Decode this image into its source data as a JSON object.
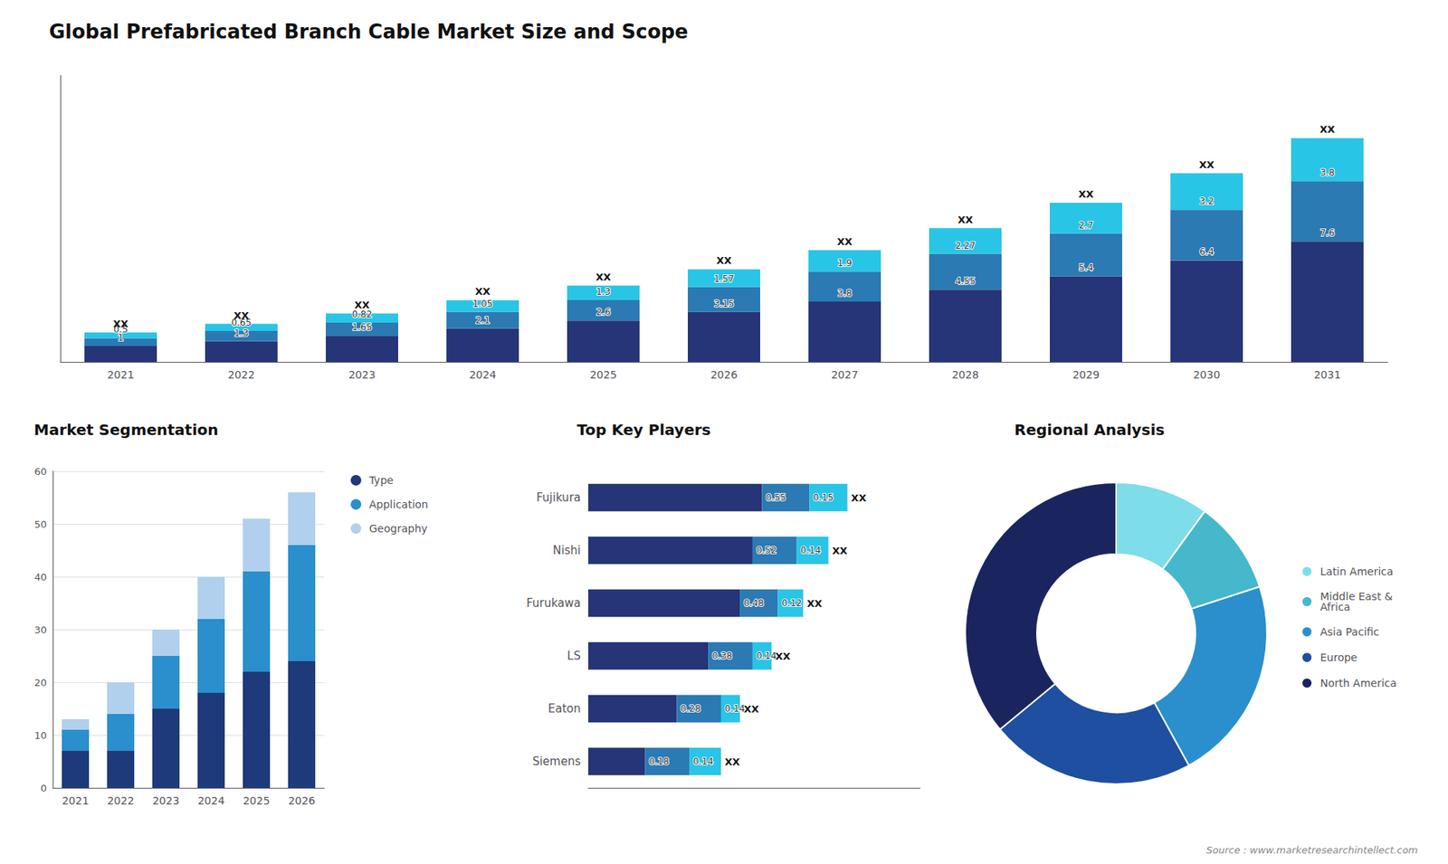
{
  "chart_data": [
    {
      "type": "bar",
      "title": "Global Prefabricated Branch Cable Market Size and Scope",
      "categories": [
        "2021",
        "2022",
        "2023",
        "2024",
        "2025",
        "2026",
        "2027",
        "2028",
        "2029",
        "2030",
        "2031"
      ],
      "series": [
        {
          "color": "#263577",
          "values": [
            1.0,
            1.3,
            1.65,
            2.1,
            2.6,
            3.15,
            3.8,
            4.55,
            5.4,
            6.4,
            7.6
          ]
        },
        {
          "color": "#2b7ab3",
          "values": [
            0.5,
            0.65,
            0.82,
            1.05,
            1.3,
            1.57,
            1.9,
            2.27,
            2.7,
            3.2,
            3.8
          ]
        },
        {
          "color": "#29c5e6",
          "values": [
            0.35,
            0.45,
            0.58,
            0.74,
            0.92,
            1.12,
            1.35,
            1.62,
            1.93,
            2.3,
            2.72
          ],
          "value_labels": [
            "XX",
            "XX",
            "XX",
            "XX",
            "XX",
            "XX",
            "XX",
            "XX",
            "XX",
            "XX",
            "XX"
          ]
        }
      ],
      "stacked": true,
      "data_labels": true,
      "ylim": [
        0,
        18.0736
      ],
      "tick_labels": "x",
      "grid": false,
      "annotations": [
        "Source : www.marketresearchintellect.com"
      ]
    },
    {
      "type": "bar",
      "title": "Market Segmentation",
      "categories": [
        "2021",
        "2022",
        "2023",
        "2024",
        "2025",
        "2026"
      ],
      "series": [
        {
          "name": "Type",
          "color": "#1e3a7a",
          "values": [
            7,
            7,
            15,
            18,
            22,
            24
          ]
        },
        {
          "name": "Application",
          "color": "#2a8fcc",
          "values": [
            4,
            7,
            10,
            14,
            19,
            22
          ]
        },
        {
          "name": "Geography",
          "color": "#b0d0ee",
          "values": [
            2,
            6,
            5,
            8,
            10,
            10
          ]
        }
      ],
      "stacked": true,
      "ylim": [
        0,
        60
      ],
      "yticks": [
        0,
        10,
        20,
        30,
        40,
        50,
        60
      ],
      "grid": true,
      "legend": "right"
    },
    {
      "type": "bar",
      "orientation": "horizontal",
      "title": "Top Key Players",
      "categories": [
        "Fujikura",
        "Nishi",
        "Furukawa",
        "LS",
        "Eaton",
        "Siemens"
      ],
      "series": [
        {
          "color": "#263577",
          "values": [
            0.55,
            0.52,
            0.48,
            0.38,
            0.28,
            0.18
          ]
        },
        {
          "color": "#2b7ab3",
          "values": [
            0.15,
            0.14,
            0.12,
            0.14,
            0.14,
            0.14
          ]
        },
        {
          "color": "#29c5e6",
          "values": [
            0.12,
            0.1,
            0.08,
            0.06,
            0.06,
            0.1
          ],
          "value_labels": [
            "XX",
            "XX",
            "XX",
            "XX",
            "XX",
            "XX"
          ]
        }
      ],
      "stacked": true,
      "data_labels": true,
      "xlim": [
        0,
        1.05
      ],
      "tick_labels": "y",
      "grid": false
    },
    {
      "type": "pie",
      "title": "Regional Analysis",
      "categories": [
        "Latin America",
        "Middle East &\nAfrica",
        "Asia Pacific",
        "Europe",
        "North America"
      ],
      "values": [
        10,
        10,
        22,
        22,
        36
      ],
      "colors": [
        "#7ddde8",
        "#45b8cc",
        "#2a8fcc",
        "#1e4fa0",
        "#1a2560"
      ],
      "legend": "right"
    }
  ]
}
